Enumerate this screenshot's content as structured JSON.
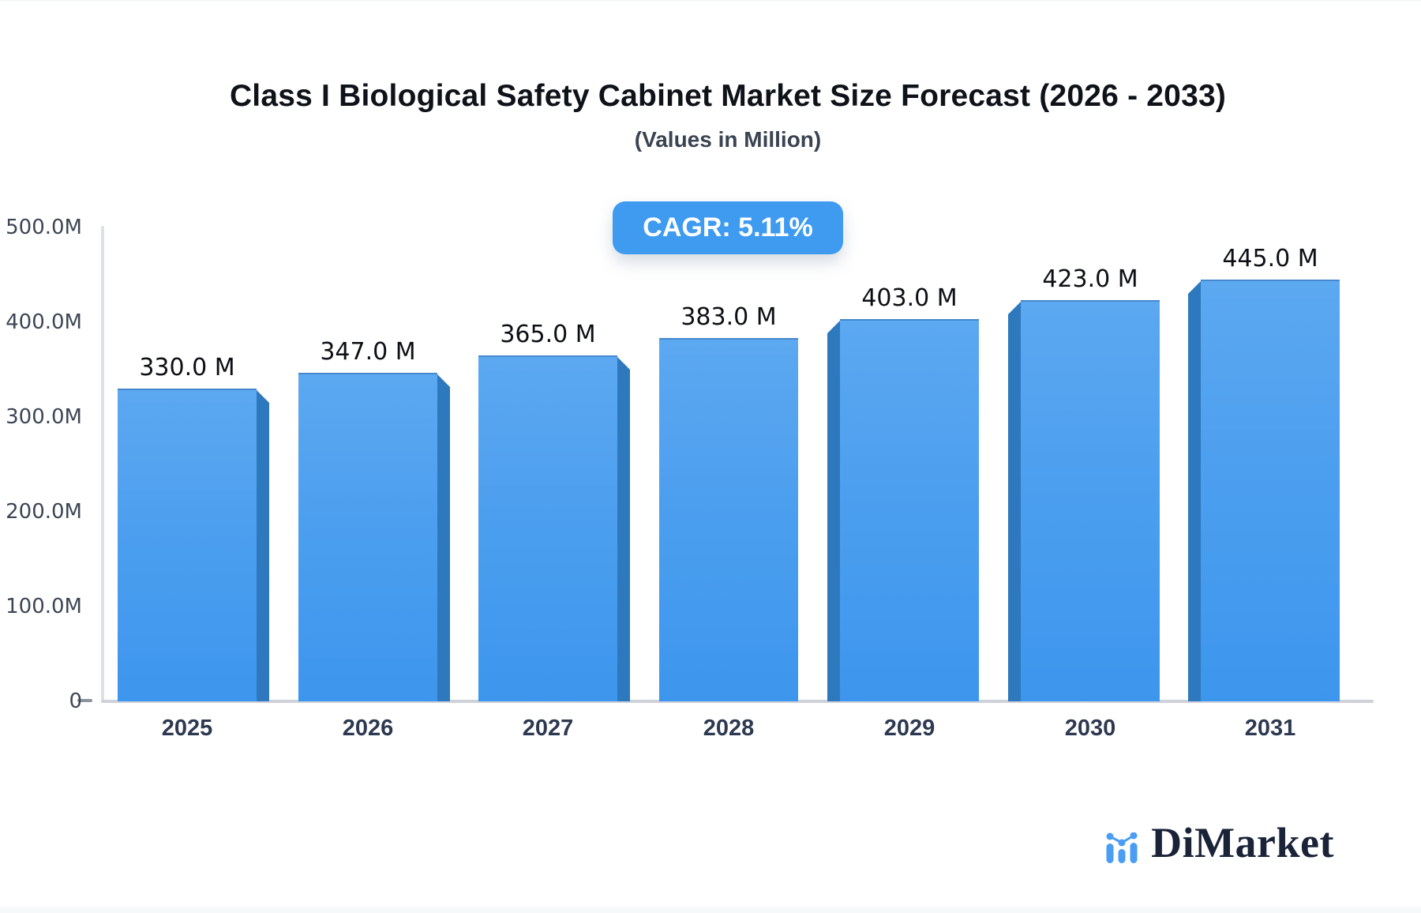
{
  "header": {
    "title": "Class I Biological Safety Cabinet Market Size Forecast (2026 - 2033)",
    "subtitle": "(Values in Million)",
    "cagr_label": "CAGR: 5.11%"
  },
  "chart_data": {
    "type": "bar",
    "title": "Class I Biological Safety Cabinet Market Size Forecast (2026 - 2033)",
    "subtitle": "(Values in Million)",
    "cagr_text": "CAGR: 5.11%",
    "categories": [
      "2025",
      "2026",
      "2027",
      "2028",
      "2029",
      "2030",
      "2031"
    ],
    "values": [
      330.0,
      347.0,
      365.0,
      383.0,
      403.0,
      423.0,
      445.0
    ],
    "value_labels": [
      "330.0 M",
      "347.0 M",
      "365.0 M",
      "383.0 M",
      "403.0 M",
      "423.0 M",
      "445.0 M"
    ],
    "unit": "Million",
    "xlabel": "",
    "ylabel": "",
    "ylim": [
      0,
      500
    ],
    "y_ticks": [
      {
        "value": 500,
        "label": "500.0M"
      },
      {
        "value": 400,
        "label": "400.0M"
      },
      {
        "value": 300,
        "label": "300.0M"
      },
      {
        "value": 200,
        "label": "200.0M"
      },
      {
        "value": 100,
        "label": "100.0M"
      },
      {
        "value": 0,
        "label": "0"
      }
    ],
    "grid": false,
    "legend": false,
    "bar_style": "3d-beveled"
  },
  "branding": {
    "logo_text": "DiMarket",
    "logo_icon": "mini-bar-chart-icon"
  },
  "colors": {
    "bar_front_top": "#5CA8F1",
    "bar_front_mid": "#4C9FEF",
    "bar_front_bottom": "#3D96ED",
    "bar_side": "#2E78BE",
    "bar_top_edge": "#4688CF",
    "badge_bg": "#3E9BF0",
    "badge_text": "#FFFFFF",
    "axis_line": "#DDE0E5",
    "baseline": "#CDD1D8",
    "title_text": "#0F1319",
    "subtitle_text": "#3A4351",
    "tick_text": "#3D4654",
    "category_text": "#2D3950",
    "value_text": "#0C0F14",
    "logo_text_color": "#1A2338",
    "logo_icon_color": "#4A9DF3"
  }
}
